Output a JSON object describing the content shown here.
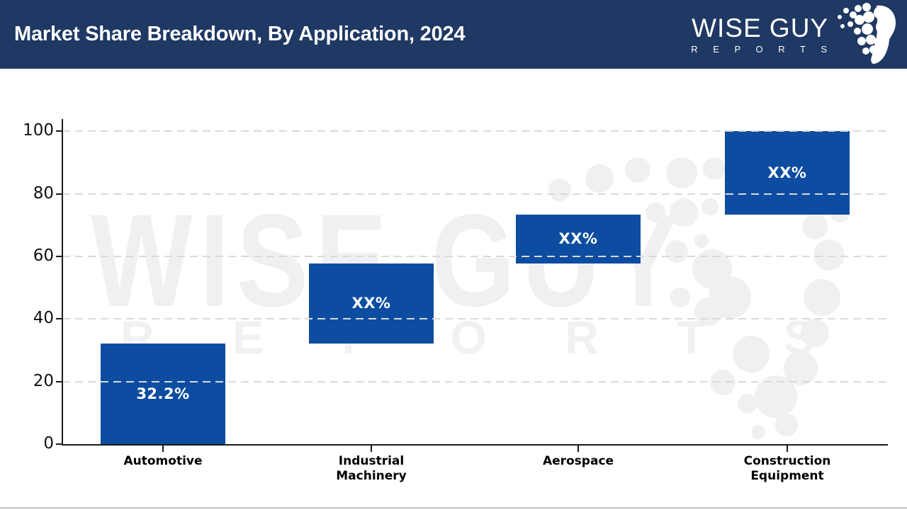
{
  "header": {
    "title": "Market Share Breakdown, By Application, 2024",
    "logo": {
      "brand": "WISE GUY",
      "sub": "R E P O R T S"
    }
  },
  "watermark": {
    "brand": "WISE GUY",
    "sub": "R E P O R T S"
  },
  "chart_data": {
    "type": "bar",
    "subtype": "floating-waterfall",
    "title": "Market Share Breakdown, By Application, 2024",
    "categories": [
      {
        "label": "Automotive",
        "lines": [
          "Automotive"
        ]
      },
      {
        "label": "Industrial Machinery",
        "lines": [
          "Industrial",
          "Machinery"
        ]
      },
      {
        "label": "Aerospace",
        "lines": [
          "Aerospace"
        ]
      },
      {
        "label": "Construction Equipment",
        "lines": [
          "Construction",
          "Equipment"
        ]
      }
    ],
    "segments": [
      {
        "category": "Automotive",
        "start": 0,
        "end": 32.2,
        "label": "32.2%"
      },
      {
        "category": "Industrial Machinery",
        "start": 32.2,
        "end": 57.8,
        "label": "XX%"
      },
      {
        "category": "Aerospace",
        "start": 57.8,
        "end": 73.3,
        "label": "XX%"
      },
      {
        "category": "Construction Equipment",
        "start": 73.3,
        "end": 100,
        "label": "XX%"
      }
    ],
    "ylim": [
      0,
      100
    ],
    "yticks": [
      0,
      20,
      40,
      60,
      80,
      100
    ],
    "grid": {
      "horizontal": true,
      "style": "dashed",
      "over_bars": true
    },
    "legend": null,
    "bar_color": "#0d4da1",
    "bar_label_color": "#ffffff"
  },
  "colors": {
    "header_bg": "#1f3864",
    "bar": "#0d4da1",
    "grid": "#d9d9d9",
    "axis": "#1a1a1a",
    "tick_text": "#111111",
    "watermark": "#f0f0f2",
    "bottom_rule": "#c4c4c8"
  }
}
